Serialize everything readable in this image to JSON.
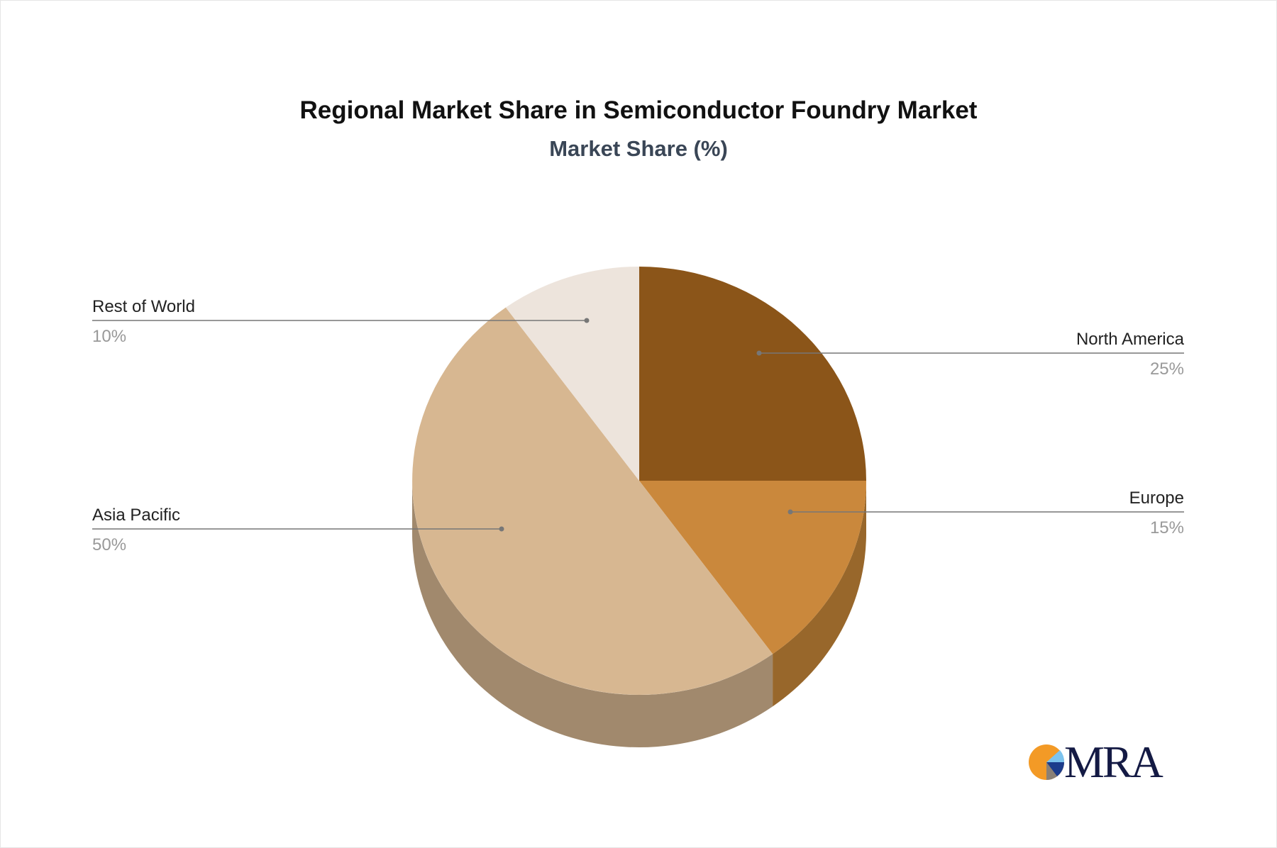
{
  "chart_data": {
    "type": "pie",
    "title": "Regional Market Share in Semiconductor Foundry Market",
    "subtitle": "Market Share (%)",
    "style": "3d",
    "slices": [
      {
        "label": "North America",
        "value": 25,
        "display": "25%",
        "color": "#8b5519",
        "side_color": "#8b5519"
      },
      {
        "label": "Europe",
        "value": 15,
        "display": "15%",
        "color": "#ca883c",
        "side_color": "#98672b"
      },
      {
        "label": "Asia Pacific",
        "value": 50,
        "display": "50%",
        "color": "#d7b791",
        "side_color": "#a1896d"
      },
      {
        "label": "Rest of World",
        "value": 10,
        "display": "10%",
        "color": "#ede4dc",
        "side_color": "#b3aca5"
      }
    ]
  },
  "logo": {
    "text": "MRA",
    "colors": [
      "#f39a26",
      "#7cc3ee",
      "#1c3c8c",
      "#8a8076"
    ]
  }
}
